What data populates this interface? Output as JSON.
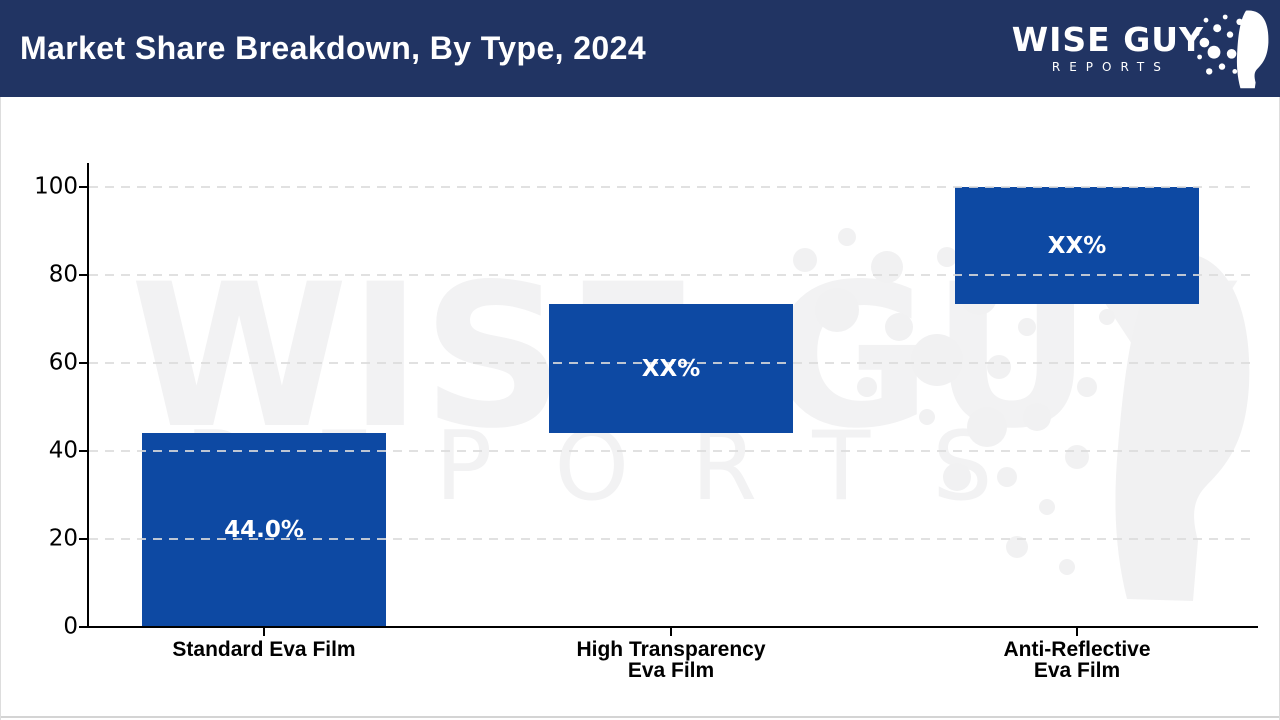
{
  "header": {
    "title": "Market Share Breakdown, By Type, 2024",
    "logo": {
      "brand_line1": "WISE GUY",
      "brand_line2": "REPORTS"
    }
  },
  "watermark": {
    "line1": "WISE GUY",
    "line2": "REPORTS"
  },
  "chart_data": {
    "type": "bar",
    "subtype": "stacked-waterfall-segments",
    "title": "Market Share Breakdown, By Type, 2024",
    "categories": [
      [
        "Standard Eva Film"
      ],
      [
        "High Transparency",
        "Eva Film"
      ],
      [
        "Anti-Reflective",
        "Eva Film"
      ]
    ],
    "segments": [
      {
        "category": "Standard Eva Film",
        "start": 0,
        "end": 44.0,
        "label": "44.0%"
      },
      {
        "category": "High Transparency Eva Film",
        "start": 44.0,
        "end": 73.4,
        "label": "XX%"
      },
      {
        "category": "Anti-Reflective Eva Film",
        "start": 73.4,
        "end": 100.0,
        "label": "XX%"
      }
    ],
    "yticks": [
      0,
      20,
      40,
      60,
      80,
      100
    ],
    "ylim": [
      0,
      105
    ],
    "xlabel": "",
    "ylabel": "",
    "grid": "horizontal-dashed",
    "legend": "none",
    "colors": {
      "header_bg": "#213463",
      "bar": "#0d49a3",
      "bar_label": "#ffffff",
      "grid": "#dcdcdc",
      "axis": "#000000",
      "tick_label": "#000000",
      "page_bg": "#ffffff",
      "hairline": "#d4d4d4"
    }
  }
}
